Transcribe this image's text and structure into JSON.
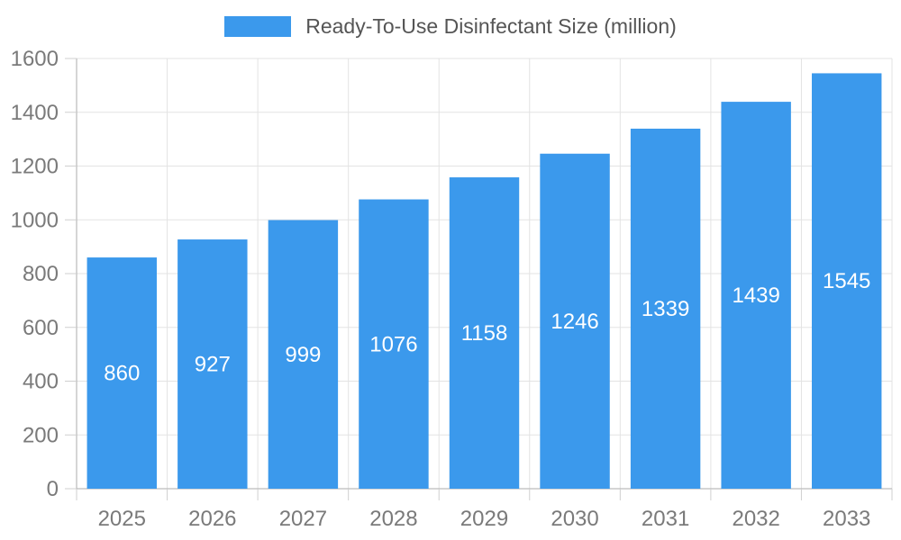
{
  "legend": {
    "label": "Ready-To-Use Disinfectant Size (million)"
  },
  "chart_data": {
    "type": "bar",
    "title": "",
    "xlabel": "",
    "ylabel": "",
    "categories": [
      "2025",
      "2026",
      "2027",
      "2028",
      "2029",
      "2030",
      "2031",
      "2032",
      "2033"
    ],
    "series": [
      {
        "name": "Ready-To-Use Disinfectant Size (million)",
        "values": [
          860,
          927,
          999,
          1076,
          1158,
          1246,
          1339,
          1439,
          1545
        ]
      }
    ],
    "ylim": [
      0,
      1600
    ],
    "yticks": [
      0,
      200,
      400,
      600,
      800,
      1000,
      1200,
      1400,
      1600
    ],
    "grid": true,
    "legend_position": "top",
    "value_labels_shown": true,
    "colors": {
      "bar": "#3b99ec",
      "bar_value_text": "#ffffff",
      "axis_text": "#7a7a7a",
      "legend_text": "#555555",
      "gridline": "#e3e3e3",
      "axis_line": "#ababab",
      "tick": "#cfcfcf",
      "background": "#ffffff"
    }
  }
}
